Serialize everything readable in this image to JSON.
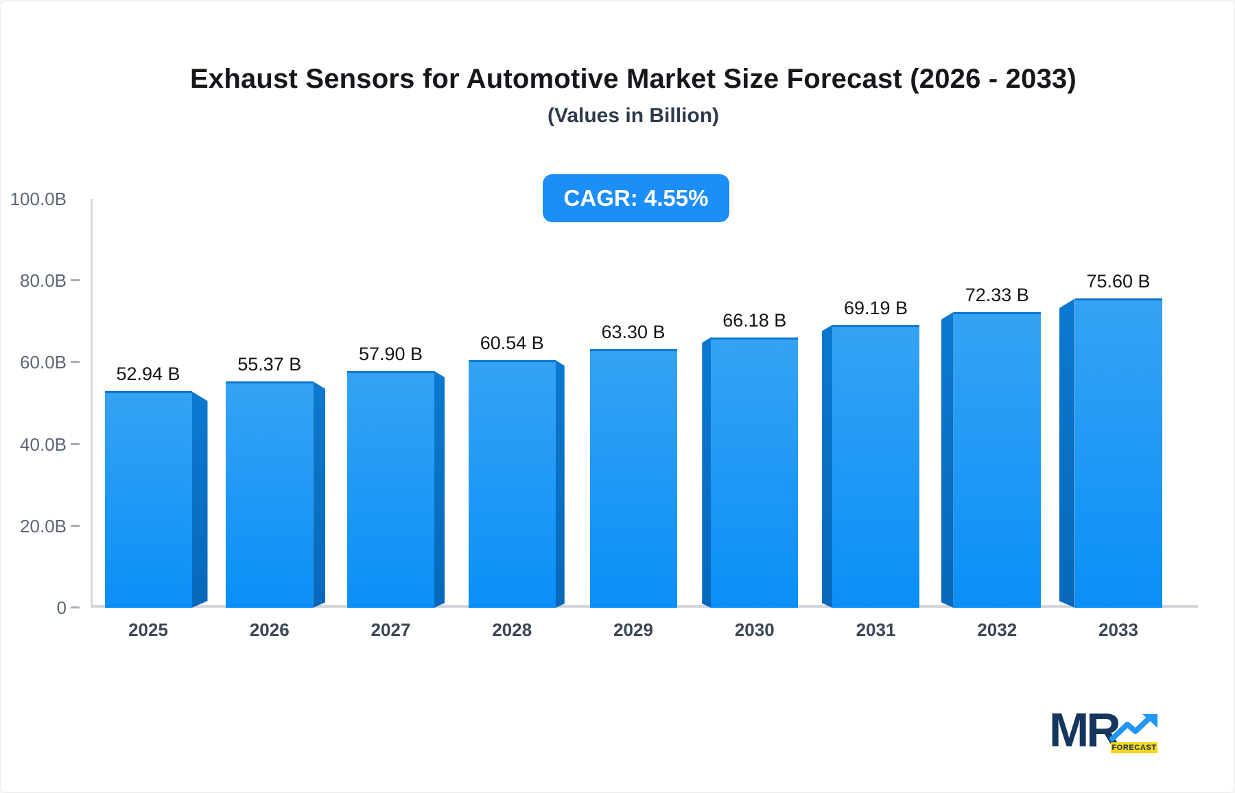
{
  "chart_data": {
    "type": "bar",
    "title": "Exhaust Sensors for Automotive Market Size Forecast (2026 - 2033)",
    "subtitle": "(Values in Billion)",
    "cagr_label": "CAGR: 4.55%",
    "categories": [
      "2025",
      "2026",
      "2027",
      "2028",
      "2029",
      "2030",
      "2031",
      "2032",
      "2033"
    ],
    "values": [
      52.94,
      55.37,
      57.9,
      60.54,
      63.3,
      66.18,
      69.19,
      72.33,
      75.6
    ],
    "value_labels": [
      "52.94 B",
      "55.37 B",
      "57.90 B",
      "60.54 B",
      "63.30 B",
      "66.18 B",
      "69.19 B",
      "72.33 B",
      "75.60 B"
    ],
    "xlabel": "",
    "ylabel": "",
    "ylim": [
      0,
      100
    ],
    "y_ticks": [
      {
        "value": 100,
        "label": "100.0B"
      },
      {
        "value": 80,
        "label": "80.0B"
      },
      {
        "value": 60,
        "label": "60.0B"
      },
      {
        "value": 40,
        "label": "40.0B"
      },
      {
        "value": 20,
        "label": "20.0B"
      },
      {
        "value": 0,
        "label": "0"
      }
    ],
    "grid": false,
    "legend": "none",
    "colors": {
      "bar_top": "#35a3f4",
      "bar_bottom": "#0a8ff7",
      "bar_top_edge": "#0d77d0",
      "bar_side": "#0768bb",
      "bar_side_light": "#0b79d0",
      "axis": "#d3d6db",
      "tick_label": "#5d6676",
      "x_label": "#3b4554",
      "value_label": "#111418",
      "badge_bg": "#1b8ef7",
      "badge_text": "#ffffff"
    }
  },
  "logo": {
    "brand": "MR",
    "label": "FORECAST",
    "brand_color": "#16365e",
    "arrow_color": "#2196f3",
    "label_bg": "#f7d514",
    "label_color": "#14325a"
  }
}
